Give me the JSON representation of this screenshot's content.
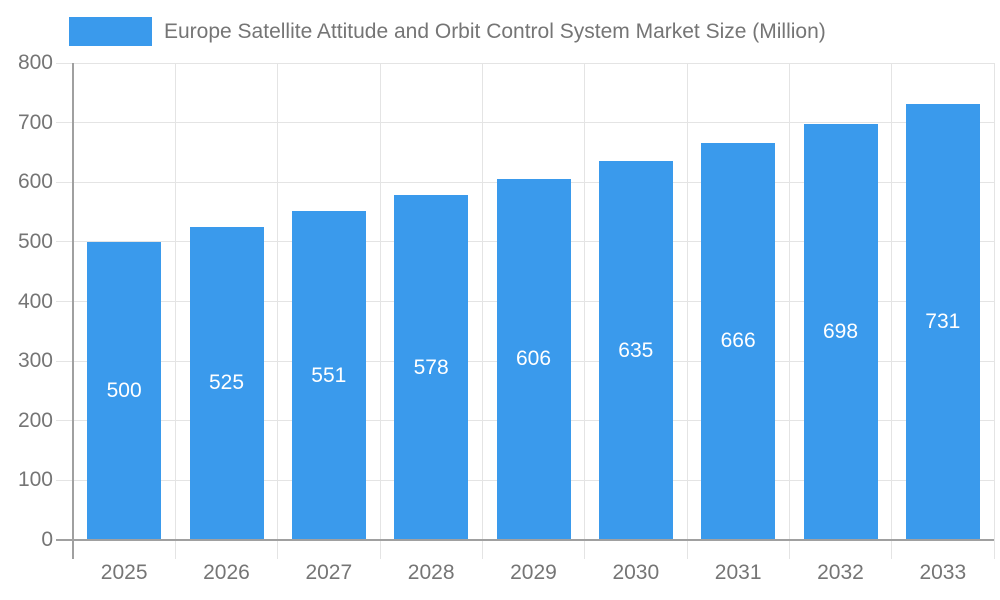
{
  "legend": {
    "label": "Europe Satellite Attitude and Orbit Control System Market Size (Million)"
  },
  "colors": {
    "bar": "#3a9aec",
    "grid": "#e4e4e4",
    "axis": "#a0a0a0",
    "tick_text": "#757575",
    "value_label": "#ffffff",
    "background": "#ffffff"
  },
  "chart_data": {
    "type": "bar",
    "title": "Europe Satellite Attitude and Orbit Control System Market Size (Million)",
    "categories": [
      "2025",
      "2026",
      "2027",
      "2028",
      "2029",
      "2030",
      "2031",
      "2032",
      "2033"
    ],
    "values": [
      500,
      525,
      551,
      578,
      606,
      635,
      666,
      698,
      731
    ],
    "xlabel": "",
    "ylabel": "",
    "ylim": [
      0,
      800
    ],
    "ytick_step": 100,
    "yticks": [
      "0",
      "100",
      "200",
      "300",
      "400",
      "500",
      "600",
      "700",
      "800"
    ],
    "grid": true,
    "legend_position": "top-left",
    "value_labels": "centered-in-bar"
  }
}
